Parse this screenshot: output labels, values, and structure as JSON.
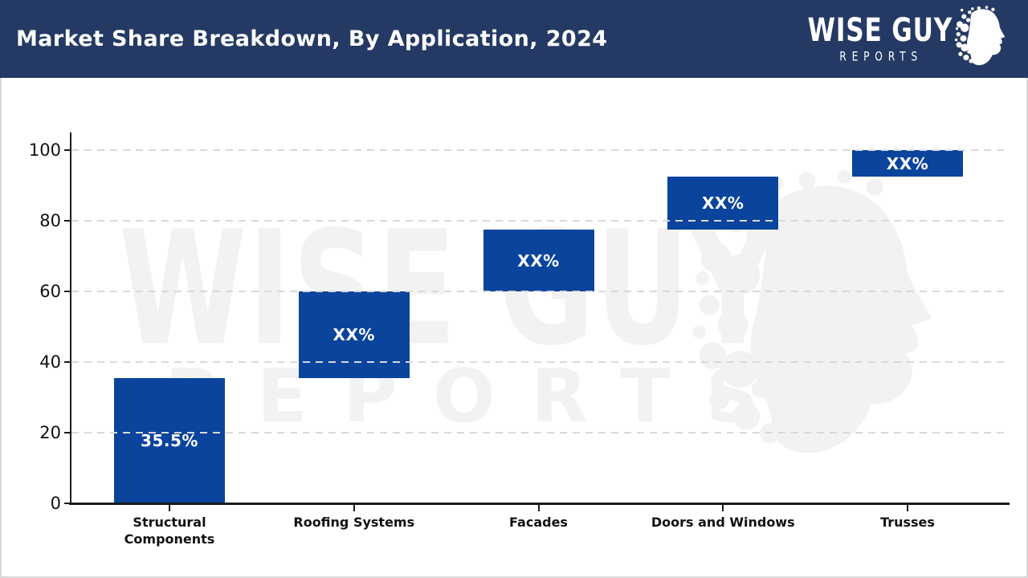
{
  "header": {
    "title": "Market Share Breakdown, By Application, 2024",
    "logo": {
      "name_line": "WISE GUY",
      "sub_line": "REPORTS"
    }
  },
  "watermark": {
    "name_line": "WISE GUY",
    "sub_line": "REPORTS"
  },
  "colors": {
    "header_bg": "#243a64",
    "bar": "#0a449c",
    "bar_label": "#ffffff",
    "grid": "#d9d9d9",
    "axis": "#1a1a1a",
    "watermark": "#f2f2f4"
  },
  "chart_data": {
    "type": "bar",
    "variant": "waterfall",
    "title": "Market Share Breakdown, By Application, 2024",
    "xlabel": "",
    "ylabel": "",
    "categories": [
      "Structural Components",
      "Roofing Systems",
      "Facades",
      "Doors and Windows",
      "Trusses"
    ],
    "category_display_lines": [
      [
        "Structural",
        "Components"
      ],
      [
        "Roofing Systems"
      ],
      [
        "Facades"
      ],
      [
        "Doors and Windows"
      ],
      [
        "Trusses"
      ]
    ],
    "segments": [
      {
        "category": "Structural Components",
        "start": 0,
        "end": 35.5,
        "label": "35.5%"
      },
      {
        "category": "Roofing Systems",
        "start": 35.5,
        "end": 60,
        "label": "XX%"
      },
      {
        "category": "Facades",
        "start": 60,
        "end": 77.5,
        "label": "XX%"
      },
      {
        "category": "Doors and Windows",
        "start": 77.5,
        "end": 92.5,
        "label": "XX%"
      },
      {
        "category": "Trusses",
        "start": 92.5,
        "end": 100,
        "label": "XX%"
      }
    ],
    "yticks": [
      0,
      20,
      40,
      60,
      80,
      100
    ],
    "ylim": [
      0,
      105
    ],
    "grid": "horizontal-dashed",
    "legend": "none"
  }
}
